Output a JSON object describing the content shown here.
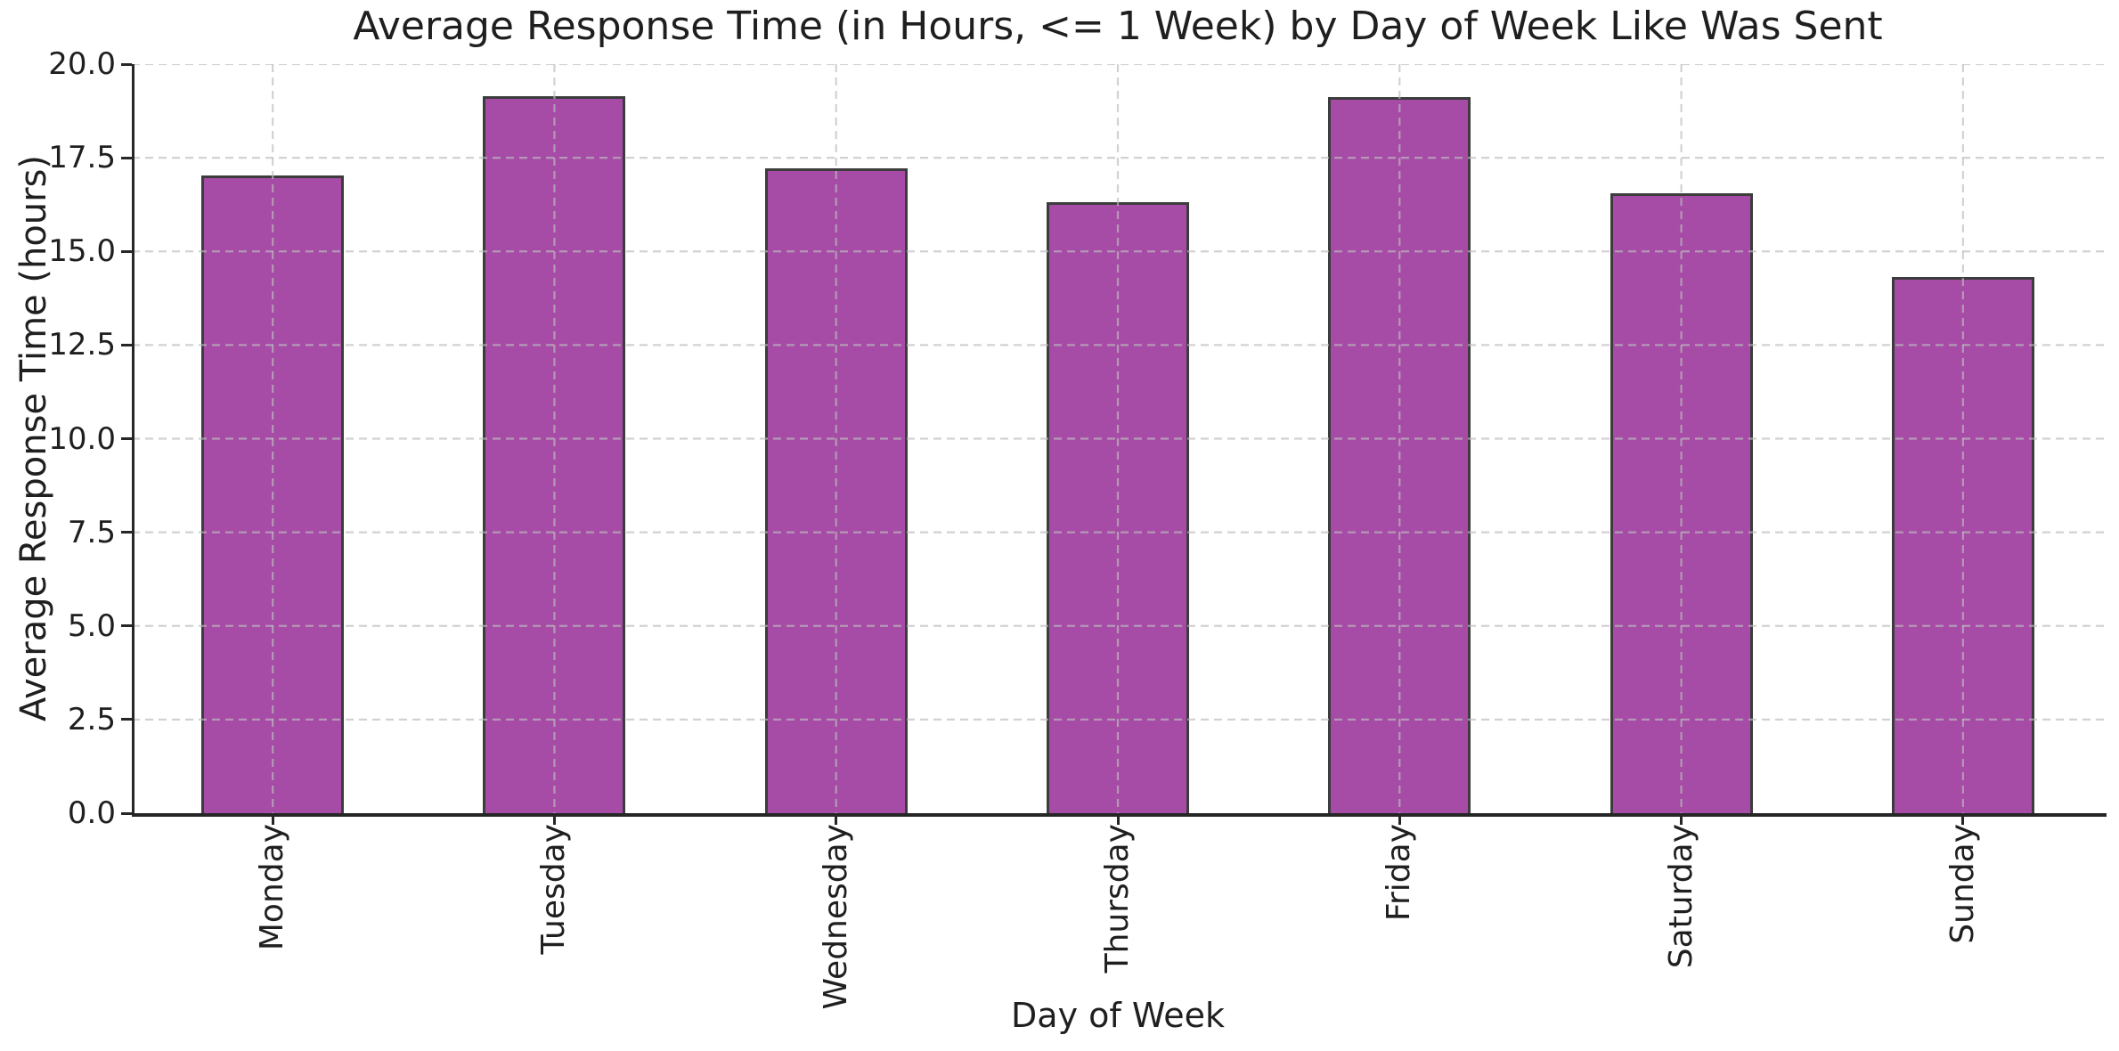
{
  "chart_data": {
    "type": "bar",
    "title": "Average Response Time (in Hours, <= 1 Week) by Day of Week Like Was Sent",
    "xlabel": "Day of Week",
    "ylabel": "Average Response Time (hours)",
    "categories": [
      "Monday",
      "Tuesday",
      "Wednesday",
      "Thursday",
      "Friday",
      "Saturday",
      "Sunday"
    ],
    "values": [
      17.03,
      19.14,
      17.22,
      16.31,
      19.12,
      16.55,
      14.32
    ],
    "ylim": [
      0,
      20
    ],
    "ytick_step": 2.5,
    "ytick_labels": [
      "0.0",
      "2.5",
      "5.0",
      "7.5",
      "10.0",
      "12.5",
      "15.0",
      "17.5",
      "20.0"
    ],
    "x_tick_rotation_deg": 90,
    "grid": {
      "visible": true,
      "style": "dashed",
      "axes": "both",
      "above_bars": true
    },
    "legend": {
      "visible": false
    },
    "colors": {
      "bar_fill": "#A64CA6",
      "bar_edge": "#3C3C3C",
      "grid": "#BDBDBD",
      "spine": "#262626",
      "text": "#1F1F1F",
      "background": "#FFFFFF"
    }
  }
}
